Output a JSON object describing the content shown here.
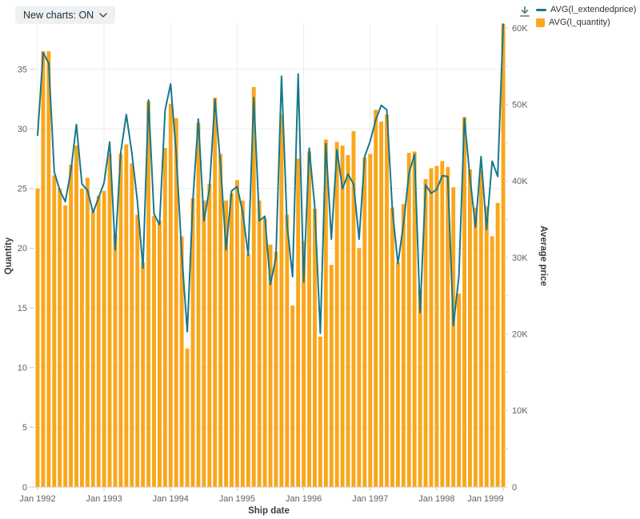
{
  "header": {
    "new_charts_label": "New charts: ON"
  },
  "toolbar": {
    "download_icon": "download-arrow-to-line"
  },
  "legend": {
    "position": "top-right",
    "items": [
      {
        "label": "AVG(l_extendedprice)",
        "swatch": "line-dash",
        "color": "#17788b"
      },
      {
        "label": "AVG(l_quantity)",
        "swatch": "square",
        "color": "#faa61b"
      }
    ]
  },
  "colors": {
    "bar": "#faa61b",
    "line": "#17788b",
    "gridline": "#ececec",
    "axis": "#cfc9be",
    "tick_text": "#616161",
    "title_text": "#3d3d3d",
    "icon": "#5c7380"
  },
  "chart_data": {
    "type": "combo",
    "title": "",
    "xlabel": "Ship date",
    "x_axis": {
      "title": "Ship date",
      "year_ticks": [
        {
          "label": "Jan 1992",
          "month_index": 0
        },
        {
          "label": "Jan 1993",
          "month_index": 12
        },
        {
          "label": "Jan 1994",
          "month_index": 24
        },
        {
          "label": "Jan 1995",
          "month_index": 36
        },
        {
          "label": "Jan 1996",
          "month_index": 48
        },
        {
          "label": "Jan 1997",
          "month_index": 60
        },
        {
          "label": "Jan 1998",
          "month_index": 72
        },
        {
          "label": "Jan 1999",
          "month_index": 84
        }
      ]
    },
    "y_left": {
      "title": "Quantity",
      "lim": [
        0,
        38.8
      ],
      "ticks": [
        0,
        5,
        10,
        15,
        20,
        25,
        30,
        35
      ],
      "grid_values": [
        5,
        10,
        15,
        20,
        25,
        30,
        35
      ]
    },
    "y_right": {
      "title": "Average price",
      "lim": [
        0,
        60500
      ],
      "ticks": [
        {
          "value": 0,
          "label": "0"
        },
        {
          "value": 10,
          "label": "10K"
        },
        {
          "value": 20,
          "label": "20K"
        },
        {
          "value": 30,
          "label": "30K"
        },
        {
          "value": 40,
          "label": "40K"
        },
        {
          "value": 50,
          "label": "50K"
        },
        {
          "value": 60,
          "label": "60K"
        }
      ],
      "minor_tick_step_k": 5
    },
    "months": [
      "1992-01",
      "1992-02",
      "1992-03",
      "1992-04",
      "1992-05",
      "1992-06",
      "1992-07",
      "1992-08",
      "1992-09",
      "1992-10",
      "1992-11",
      "1992-12",
      "1993-01",
      "1993-02",
      "1993-03",
      "1993-04",
      "1993-05",
      "1993-06",
      "1993-07",
      "1993-08",
      "1993-09",
      "1993-10",
      "1993-11",
      "1993-12",
      "1994-01",
      "1994-02",
      "1994-03",
      "1994-04",
      "1994-05",
      "1994-06",
      "1994-07",
      "1994-08",
      "1994-09",
      "1994-10",
      "1994-11",
      "1994-12",
      "1995-01",
      "1995-02",
      "1995-03",
      "1995-04",
      "1995-05",
      "1995-06",
      "1995-07",
      "1995-08",
      "1995-09",
      "1995-10",
      "1995-11",
      "1995-12",
      "1996-01",
      "1996-02",
      "1996-03",
      "1996-04",
      "1996-05",
      "1996-06",
      "1996-07",
      "1996-08",
      "1996-09",
      "1996-10",
      "1996-11",
      "1996-12",
      "1997-01",
      "1997-02",
      "1997-03",
      "1997-04",
      "1997-05",
      "1997-06",
      "1997-07",
      "1997-08",
      "1997-09",
      "1997-10",
      "1997-11",
      "1997-12",
      "1998-01",
      "1998-02",
      "1998-03",
      "1998-04",
      "1998-05",
      "1998-06",
      "1998-07",
      "1998-08",
      "1998-09",
      "1998-10",
      "1998-11",
      "1998-12",
      "1999-01"
    ],
    "series": [
      {
        "name": "AVG(l_extendedprice)",
        "type": "line",
        "axis": "right",
        "unit": "K",
        "values": [
          46.0,
          56.8,
          55.4,
          41.2,
          38.8,
          37.3,
          41.3,
          47.4,
          39.6,
          38.8,
          35.9,
          37.8,
          39.8,
          45.1,
          31.0,
          43.7,
          48.7,
          43.7,
          37.4,
          28.6,
          50.6,
          35.7,
          34.3,
          49.3,
          52.7,
          43.7,
          30.4,
          20.3,
          37.3,
          48.1,
          34.8,
          39.0,
          50.7,
          42.1,
          31.0,
          38.7,
          39.3,
          35.9,
          30.3,
          50.9,
          34.8,
          35.4,
          26.5,
          30.0,
          53.7,
          34.3,
          27.5,
          54.0,
          26.8,
          44.3,
          36.7,
          20.1,
          44.9,
          32.4,
          44.1,
          39.0,
          40.9,
          39.6,
          32.4,
          43.2,
          45.2,
          48.0,
          49.9,
          49.3,
          36.2,
          29.2,
          34.3,
          41.0,
          43.5,
          22.8,
          39.5,
          38.4,
          38.9,
          40.7,
          40.6,
          21.1,
          27.5,
          48.2,
          40.4,
          34.0,
          43.2,
          33.7,
          42.6,
          40.6,
          60.5
        ]
      },
      {
        "name": "AVG(l_quantity)",
        "type": "bar",
        "axis": "left",
        "unit": "",
        "values": [
          25.0,
          36.5,
          36.5,
          26.1,
          25.0,
          23.6,
          27.0,
          28.6,
          25.0,
          25.9,
          23.1,
          24.4,
          24.8,
          27.9,
          21.1,
          27.9,
          28.7,
          27.1,
          22.8,
          18.8,
          32.3,
          22.7,
          22.3,
          28.4,
          32.1,
          30.9,
          21.0,
          11.6,
          24.2,
          30.5,
          24.0,
          25.4,
          32.6,
          27.9,
          24.0,
          24.6,
          25.7,
          24.0,
          19.5,
          33.5,
          24.0,
          22.5,
          20.3,
          19.7,
          31.2,
          22.8,
          15.2,
          27.5,
          20.6,
          28.1,
          23.3,
          12.6,
          29.1,
          18.6,
          28.9,
          28.6,
          27.8,
          29.8,
          20.0,
          27.6,
          27.9,
          31.6,
          30.6,
          31.2,
          23.4,
          18.8,
          23.7,
          28.0,
          28.1,
          16.6,
          25.8,
          26.7,
          26.9,
          27.3,
          26.8,
          25.1,
          16.2,
          31.0,
          26.6,
          23.4,
          26.6,
          23.5,
          21.0,
          23.8,
          38.8
        ]
      }
    ],
    "grid": true,
    "legend_position": "top-right"
  }
}
